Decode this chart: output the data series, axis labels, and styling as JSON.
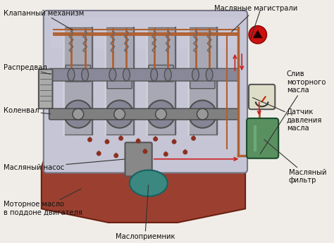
{
  "fig_width": 4.74,
  "fig_height": 3.45,
  "dpi": 100,
  "bg_color": "#f0ede8",
  "engine_bg": "#c5c5d5",
  "engine_border": "#888888",
  "oil_pan_color": "#9B4030",
  "oil_pan_dark": "#6B2010",
  "green_filter": "#5a9060",
  "teal_pickup": "#3a8880",
  "red_arrow": "#cc2020",
  "copper_line": "#b06030",
  "dark_metal": "#707070",
  "mid_metal": "#909090",
  "light_metal": "#b0b0b8",
  "labels": {
    "valve_mechanism": "Клапанный механизм",
    "oil_mains": "Масляные магистрали",
    "camshaft": "Распредвал",
    "drain": "Слив\nмоторного\nмасла",
    "crankshaft": "Коленвал",
    "pressure_sensor": "Датчик\nдавления\nмасла",
    "oil_pump": "Масляный насос",
    "oil_filter": "Масляный\nфильтр",
    "oil_pan": "Моторное масло\nв поддоне двигателя",
    "oil_pickup": "Маслоприемник"
  }
}
